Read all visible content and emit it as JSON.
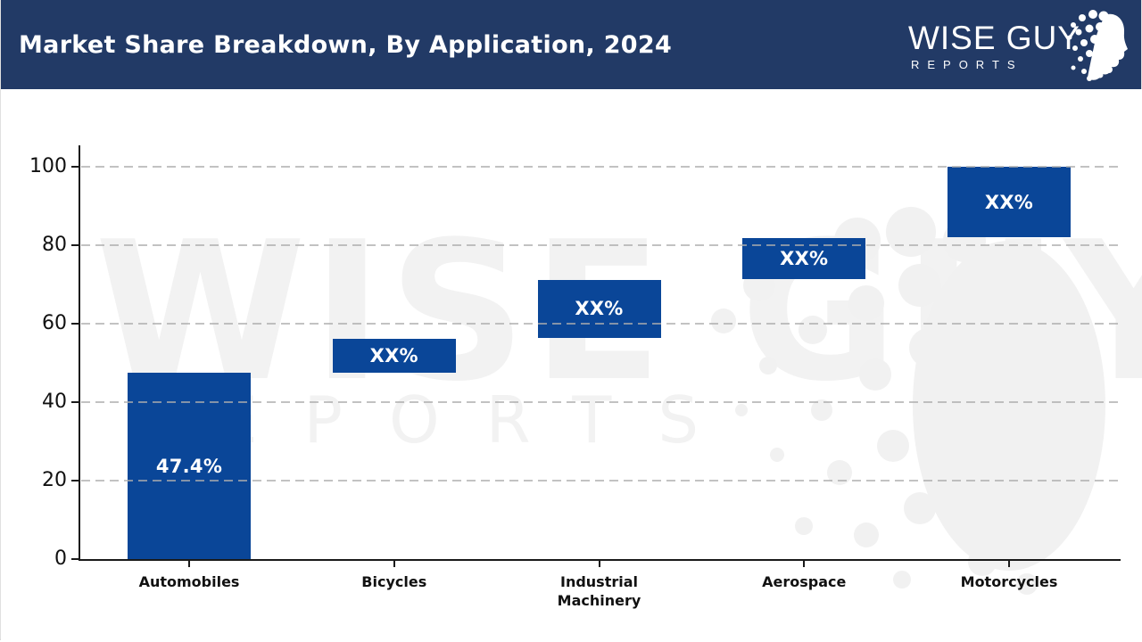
{
  "header": {
    "title": "Market Share Breakdown, By Application, 2024",
    "background": "#223a66",
    "logo": {
      "wordmark": "WISE GUY",
      "sub": "REPORTS"
    }
  },
  "watermark": {
    "line1": "WISE GUY",
    "line2": "REPORTS"
  },
  "chart_data": {
    "type": "bar",
    "subtype": "waterfall",
    "title": "Market Share Breakdown, By Application, 2024",
    "categories": [
      "Automobiles",
      "Bicycles",
      "Industrial Machinery",
      "Aerospace",
      "Motorcycles"
    ],
    "bars": [
      {
        "category": "Automobiles",
        "from": 0,
        "to": 47.4,
        "label": "47.4%"
      },
      {
        "category": "Bicycles",
        "from": 47.6,
        "to": 56.1,
        "label": "XX%"
      },
      {
        "category": "Industrial Machinery",
        "from": 56.4,
        "to": 71.1,
        "label": "XX%"
      },
      {
        "category": "Aerospace",
        "from": 71.4,
        "to": 81.8,
        "label": "XX%"
      },
      {
        "category": "Motorcycles",
        "from": 82.0,
        "to": 100.0,
        "label": "XX%"
      }
    ],
    "ylim": [
      0,
      100
    ],
    "yticks": [
      0,
      20,
      40,
      60,
      80,
      100
    ],
    "xlabel": "",
    "ylabel": "",
    "legend": "none",
    "grid": "dashed-horizontal",
    "bar_color": "#0a4698",
    "bar_label_color": "#ffffff",
    "axis_color": "#1a1a1a"
  }
}
